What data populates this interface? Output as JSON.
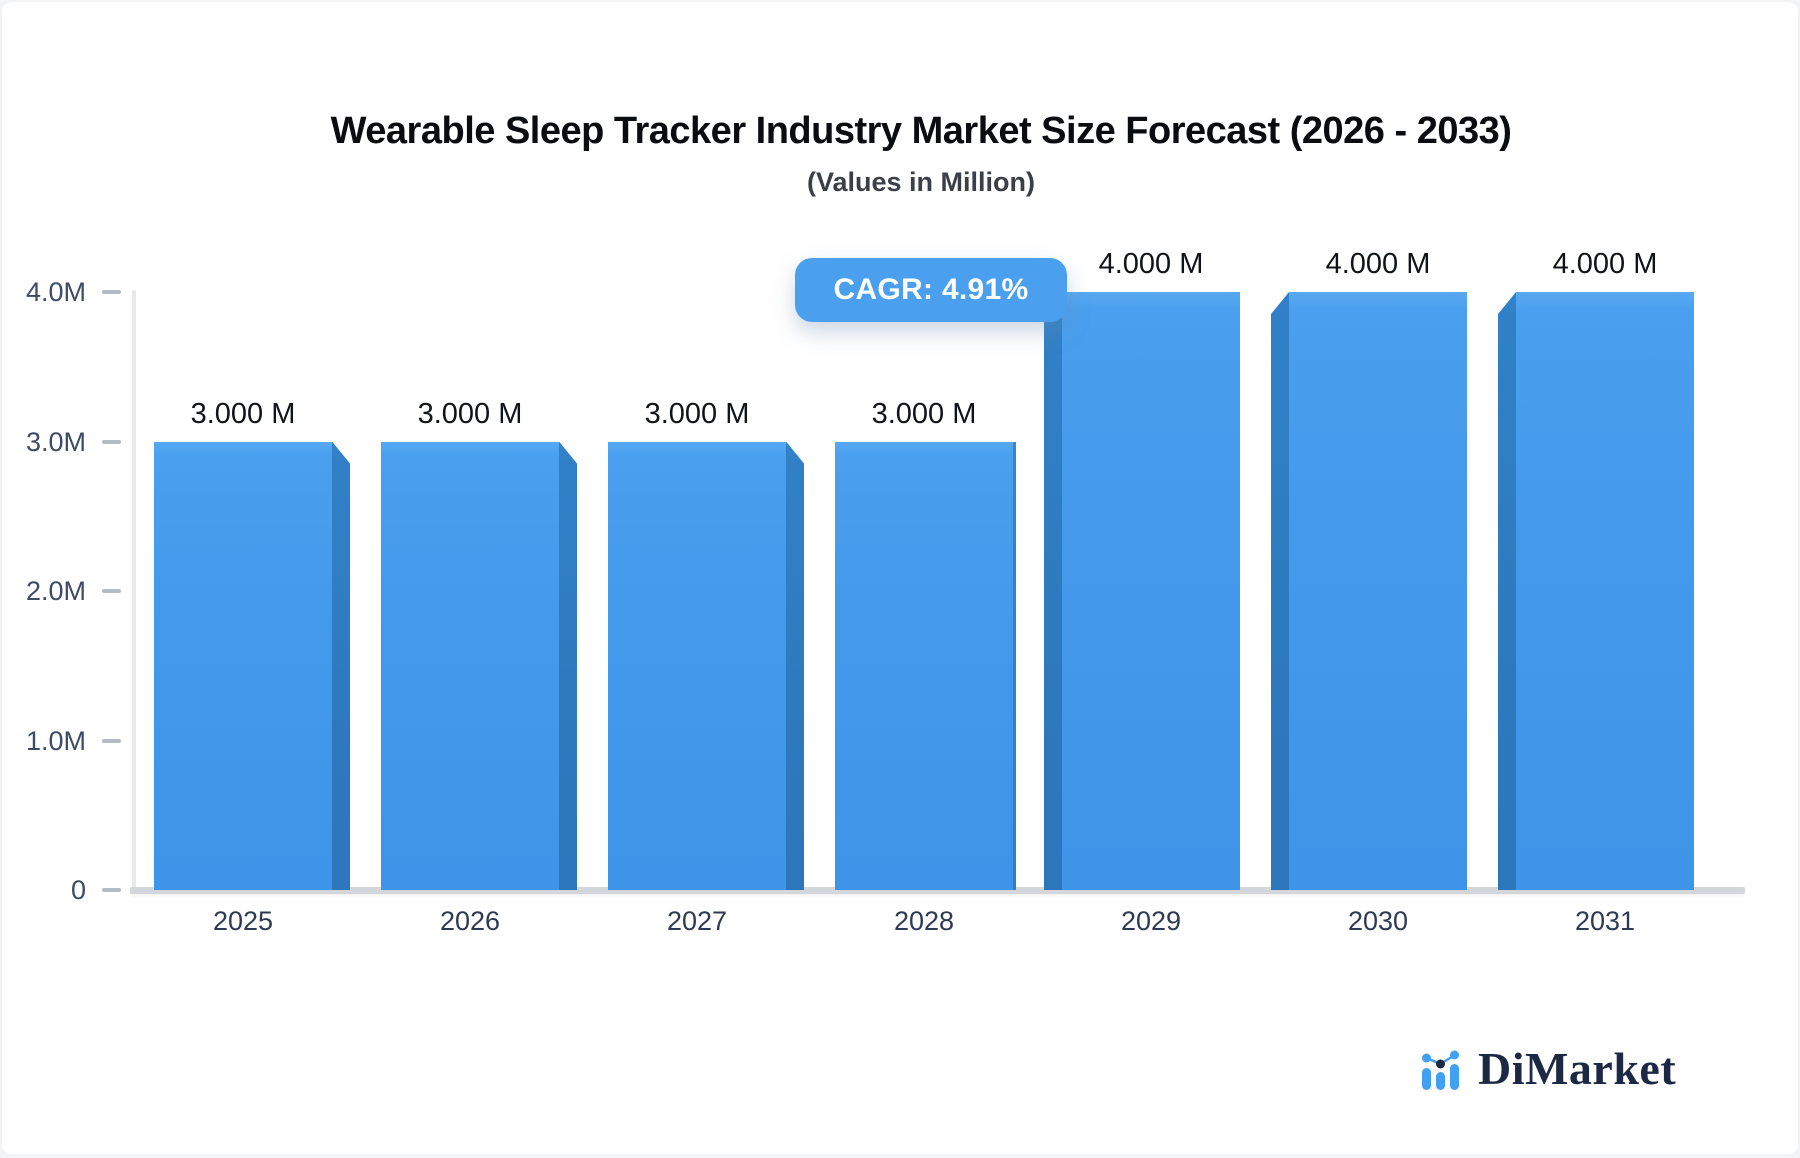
{
  "header": {
    "title": "Wearable Sleep Tracker Industry Market Size Forecast (2026 - 2033)",
    "subtitle": "(Values in Million)"
  },
  "cagr_badge": {
    "label": "CAGR: 4.91%"
  },
  "chart_data": {
    "type": "bar",
    "title": "Wearable Sleep Tracker Industry Market Size Forecast (2026 - 2033)",
    "subtitle": "(Values in Million)",
    "categories": [
      "2025",
      "2026",
      "2027",
      "2028",
      "2029",
      "2030",
      "2031"
    ],
    "values": [
      3.0,
      3.0,
      3.0,
      3.0,
      4.0,
      4.0,
      4.0
    ],
    "bar_labels": [
      "3.000 M",
      "3.000 M",
      "3.000 M",
      "3.000 M",
      "4.000 M",
      "4.000 M",
      "4.000 M"
    ],
    "xlabel": "",
    "ylabel": "",
    "ylim": [
      0,
      4.0
    ],
    "grid": false,
    "legend": false,
    "annotation": "CAGR: 4.91%",
    "y_ticks": [
      {
        "label": "4.0M",
        "value": 4.0
      },
      {
        "label": "3.0M",
        "value": 3.0
      },
      {
        "label": "2.0M",
        "value": 2.0
      },
      {
        "label": "1.0M",
        "value": 1.0
      },
      {
        "label": "0",
        "value": 0.0
      }
    ]
  },
  "logo": {
    "text": "DiMarket"
  },
  "colors": {
    "bar_face": "#4399ea",
    "bar_side": "#2e7abf",
    "badge_bg": "#4aa0ef",
    "badge_text": "#ffffff",
    "baseline": "#d3d7dc",
    "axis_line": "#e7e9ec",
    "tick_text": "#3d4b66",
    "logo_navy": "#1c2844",
    "logo_blue": "#41a0f2"
  }
}
